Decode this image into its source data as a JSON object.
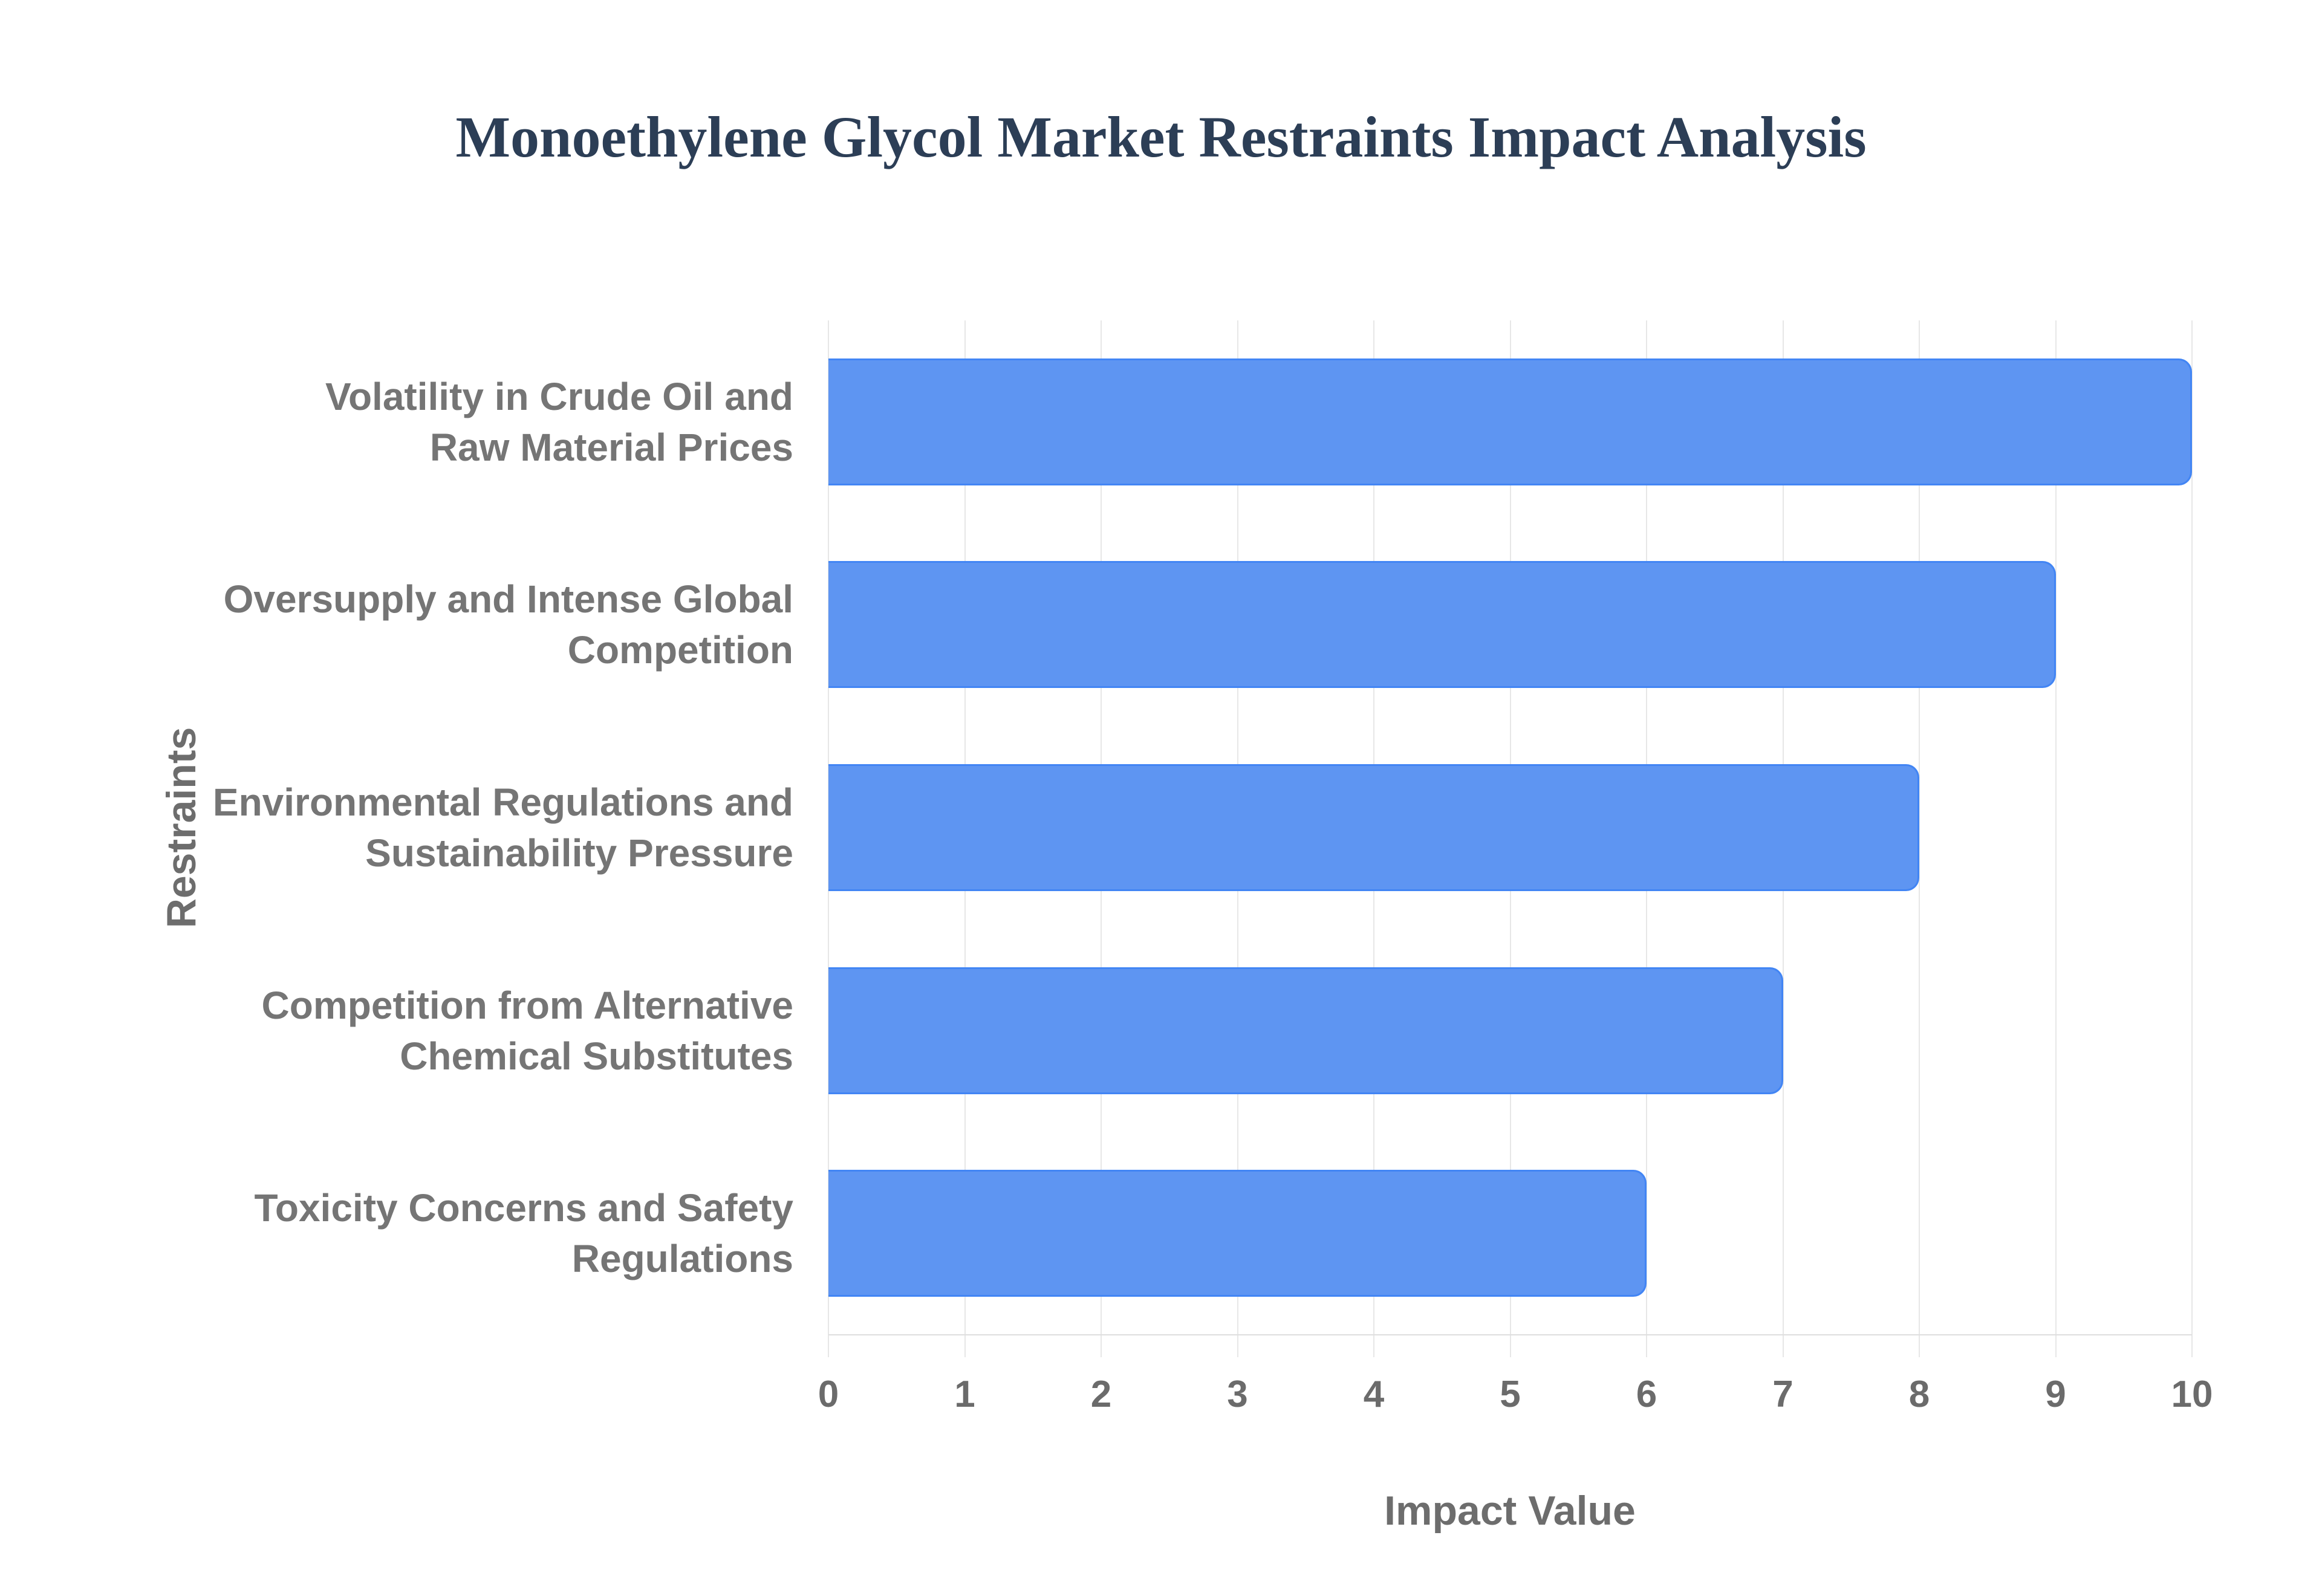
{
  "page": {
    "background": "#ffffff"
  },
  "chart_data": {
    "type": "bar",
    "orientation": "horizontal",
    "title": "Monoethylene Glycol Market Restraints Impact Analysis",
    "xlabel": "Impact Value",
    "ylabel": "Restraints",
    "categories": [
      "Volatility in Crude Oil and Raw Material Prices",
      "Oversupply and Intense Global Competition",
      "Environmental Regulations and Sustainability Pressure",
      "Competition from Alternative Chemical Substitutes",
      "Toxicity Concerns and Safety Regulations"
    ],
    "category_lines": [
      [
        "Volatility in Crude Oil and",
        "Raw Material Prices"
      ],
      [
        "Oversupply and Intense Global",
        "Competition"
      ],
      [
        "Environmental Regulations and",
        "Sustainability Pressure"
      ],
      [
        "Competition from Alternative",
        "Chemical Substitutes"
      ],
      [
        "Toxicity Concerns and Safety",
        "Regulations"
      ]
    ],
    "values": [
      10,
      9,
      8,
      7,
      6
    ],
    "xlim": [
      0,
      10
    ],
    "x_ticks": [
      0,
      1,
      2,
      3,
      4,
      5,
      6,
      7,
      8,
      9,
      10
    ],
    "grid": "vertical-only",
    "legend": "none",
    "colors": {
      "bar_fill": "#5e95f2",
      "bar_border": "#4285f4",
      "gridline": "#e7e7e7",
      "baseline": "#dedede",
      "tick_text": "#6b6b6b",
      "category_text": "#757575",
      "axis_title_text": "#6d6d6d",
      "title_text": "#2c3e56"
    }
  }
}
